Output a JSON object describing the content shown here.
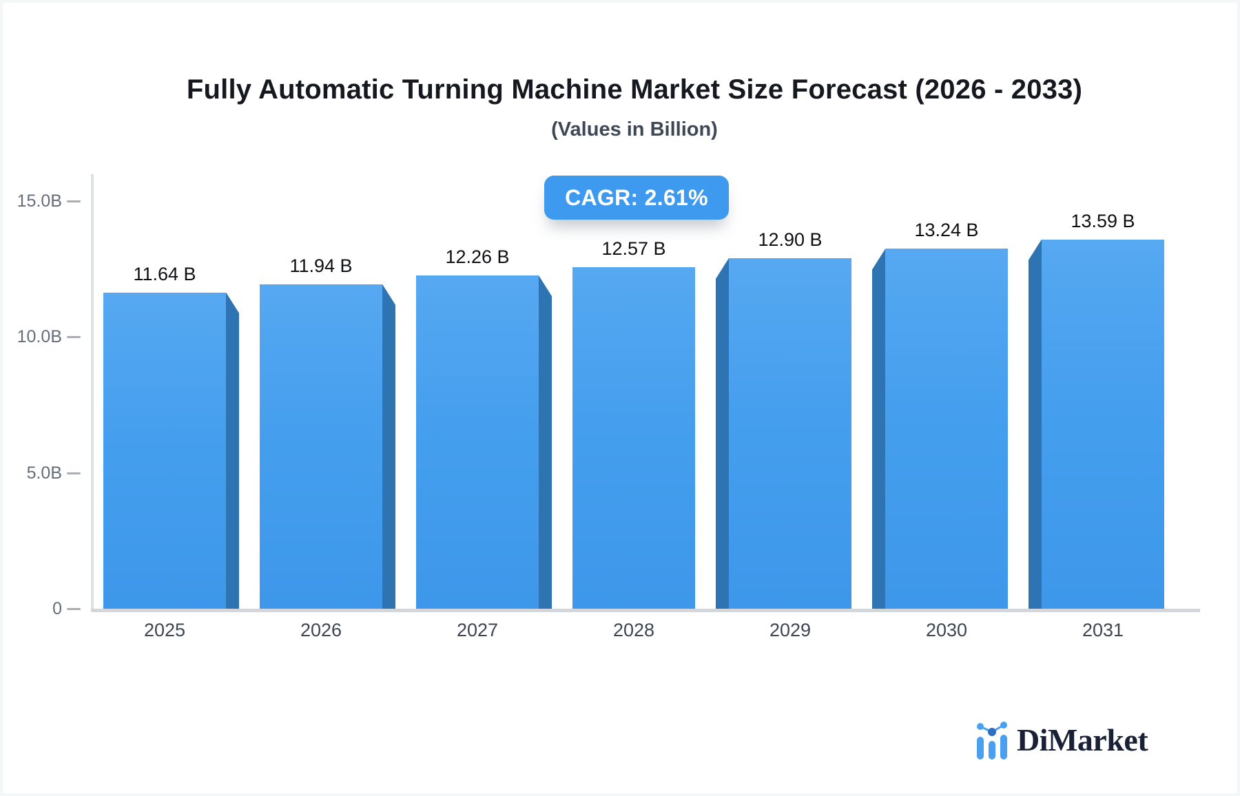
{
  "title": "Fully Automatic Turning Machine Market Size Forecast (2026 - 2033)",
  "subtitle": "(Values in Billion)",
  "badge": {
    "label": "CAGR: 2.61%",
    "color": "#3d9aee"
  },
  "logo": {
    "text": "DiMarket",
    "icon": "mini-bar-chart-logo-icon",
    "text_color": "#1a2137",
    "icon_color": "#4aa0f0",
    "icon_dot_color": "#2d6fc0"
  },
  "chart_data": {
    "type": "bar",
    "categories": [
      "2025",
      "2026",
      "2027",
      "2028",
      "2029",
      "2030",
      "2031"
    ],
    "values": [
      11.64,
      11.94,
      12.26,
      12.57,
      12.9,
      13.24,
      13.59
    ],
    "value_labels": [
      "11.64 B",
      "11.94 B",
      "12.26 B",
      "12.57 B",
      "12.90 B",
      "13.24 B",
      "13.59 B"
    ],
    "ytick_labels": [
      "15.0B",
      "10.0B",
      "5.0B",
      "0"
    ],
    "ytick_values": [
      15,
      10,
      5,
      0
    ],
    "ylim": [
      0,
      15
    ],
    "xlabel": "",
    "ylabel": "",
    "grid": false,
    "legend_position": "none",
    "bar_color_top": "#56a8f1",
    "bar_color_bottom": "#3e97ea",
    "bar_side_color": "#2e74b2",
    "axis_color": "#d3d6db",
    "style_note": "3D extruded bars; side shading faces outward from center bar 2028"
  }
}
